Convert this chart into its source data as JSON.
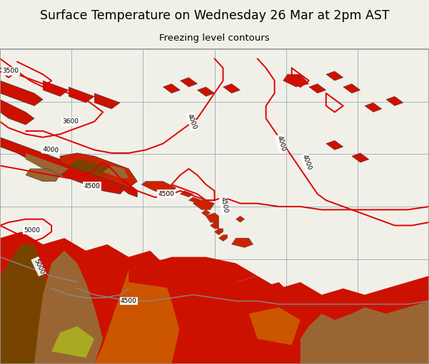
{
  "title": "Surface Temperature on Wednesday 26 Mar at 2pm AST",
  "subtitle": "Freezing level contours",
  "title_fontsize": 12.5,
  "subtitle_fontsize": 9.5,
  "fig_width": 6.01,
  "fig_height": 5.11,
  "dpi": 100,
  "title_bg": "#f0f0e8",
  "ocean_color": "#b8c8dc",
  "contour_color": "#dd0000",
  "contour_linewidth": 1.4,
  "grid_color": "#9aaabb",
  "grid_linewidth": 0.6,
  "colors": {
    "land_red_hot": "#cc1100",
    "land_red": "#cc2200",
    "land_orange": "#cc5500",
    "land_brown_dark": "#774400",
    "land_brown": "#996633",
    "land_tan": "#aa8833",
    "land_yellow_green": "#aaaa22",
    "border_dark": "#222222",
    "border_med": "#555555"
  }
}
